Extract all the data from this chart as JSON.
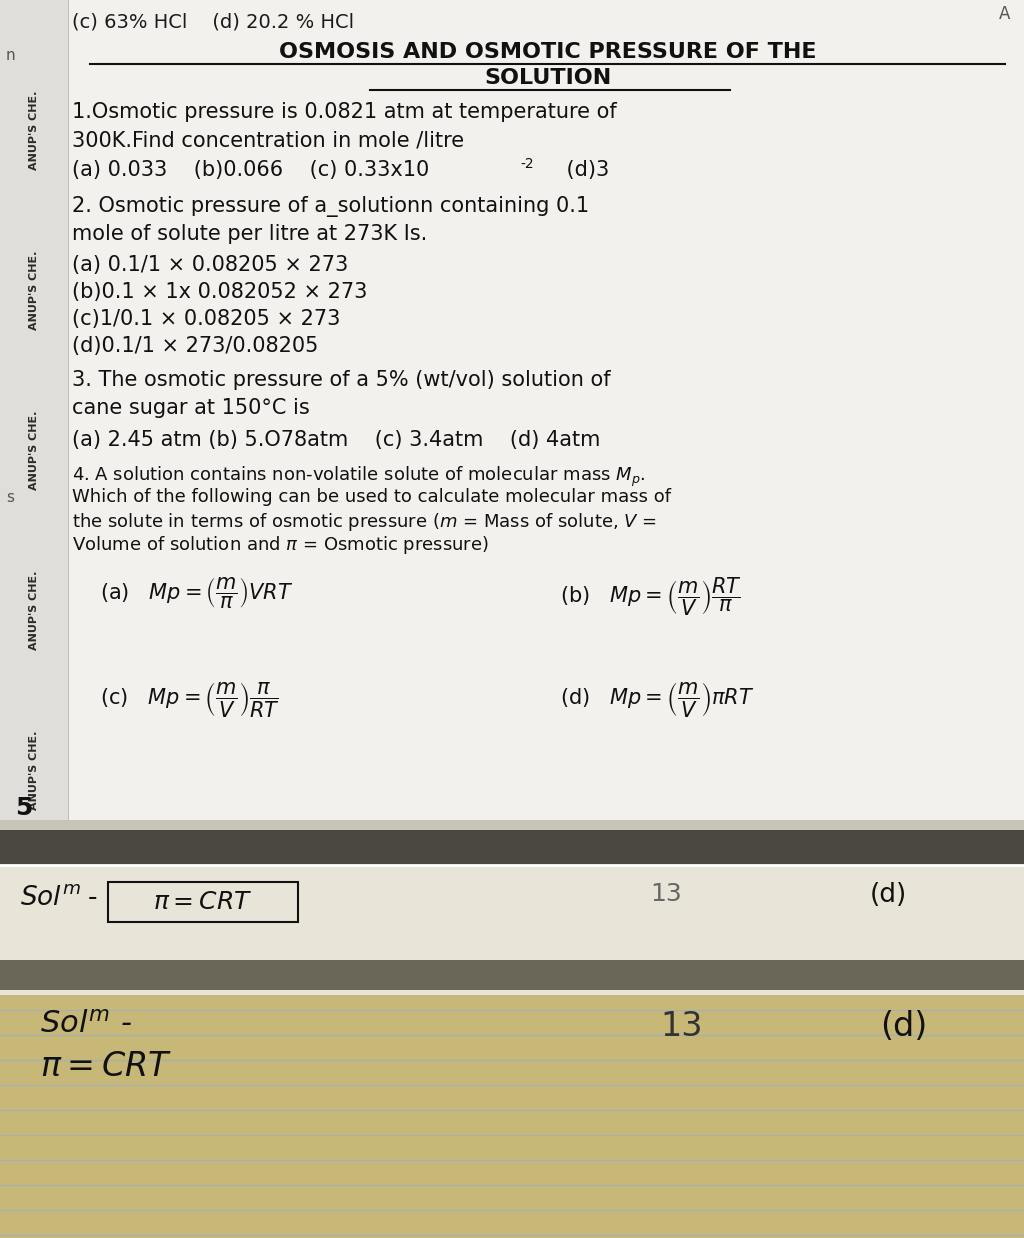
{
  "bg_color": "#e8e8e8",
  "page_color": "#f0f0ee",
  "text_color": "#1a1a1a",
  "title_line1": "OSMOSIS AND OSMOTIC PRESSURE OF THE",
  "title_line2": "SOLUTION",
  "header_text": "(c) 63% HCl    (d) 20.2 % HCl",
  "sidebar_texts": [
    "ANUP'S CHE.",
    "ANUP'S CHE.",
    "ANUP'S CHE.",
    "ANUP'S CHE.",
    "ANUP'S CHE."
  ],
  "sidebar_y": [
    130,
    290,
    450,
    610,
    770
  ],
  "q1_l1": "1.Osmotic pressure is 0.0821 atm at temperature of",
  "q1_l2": "300K.Find concentration in mole /litre",
  "q1_opt": "(a) 0.033    (b)0.066    (c) 0.33x10⁻²    (d)3",
  "q2_l1": "2. Osmotic pressure of a_solutionn containing 0.1",
  "q2_l2": "mole of solute per litre at 273K Is.",
  "q2_a": "(a) 0.1/1 × 0.08205 × 273",
  "q2_b": "(b)0.1 × 1x 0.082052 × 273",
  "q2_c": "(c)1/0.1 × 0.08205 × 273",
  "q2_d": "(d)0.1/1 × 273/0.08205",
  "q3_l1": "3. The osmotic pressure of a 5% (wt/vol) solution of",
  "q3_l2": "cane sugar at 150°C is",
  "q3_opt": "(a) 2.45 atm (b) 5.O78atm    (c) 3.4atm    (d) 4atm",
  "q4_l1": "4. A solution contains non-volatile solute of molecular mass $M_p$.",
  "q4_l2": "Which of the following can be used to calculate molecular mass of",
  "q4_l3": "the solute in terms of osmotic pressure ($m$ = Mass of solute, $V$ =",
  "q4_l4": "Volume of solution and $\\pi$ = Osmotic pressure)",
  "footer_num": "5",
  "bottom_sol": "Sol",
  "bottom_eq": "\\pi = CRT",
  "bottom_num": "13",
  "bottom_letter": "(d)",
  "bottom_sub": "m"
}
